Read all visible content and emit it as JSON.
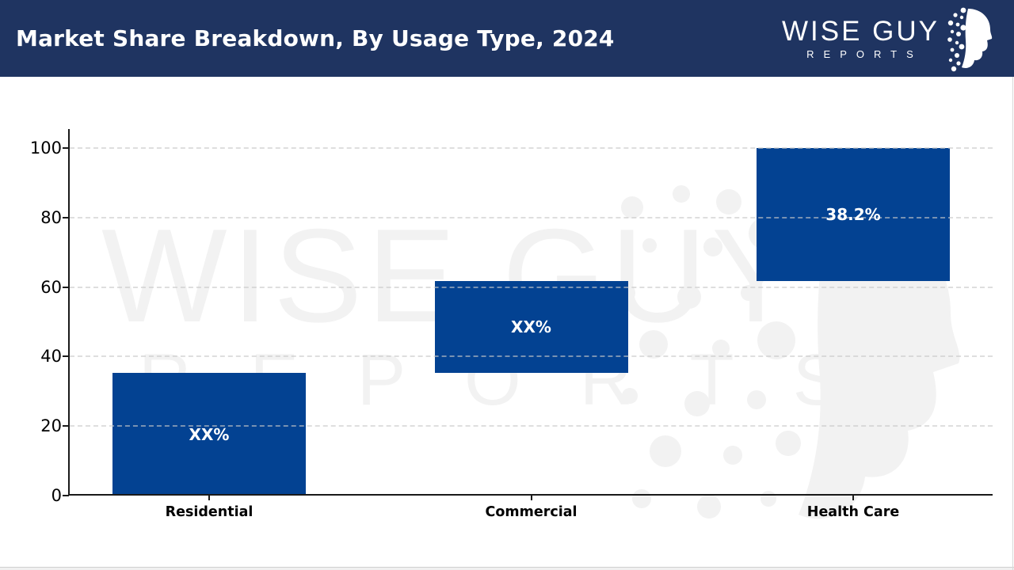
{
  "header": {
    "title": "Market Share Breakdown, By Usage Type, 2024",
    "logo": {
      "line1": "WISE GUY",
      "line2": "REPORTS"
    }
  },
  "watermark": {
    "line1": "WISE GUY",
    "line2": "REPORTS"
  },
  "chart_data": {
    "type": "bar",
    "variant": "floating-range-bars",
    "title": "Market Share Breakdown, By Usage Type, 2024",
    "categories": [
      "Residential",
      "Commercial",
      "Health Care"
    ],
    "bars": [
      {
        "category": "Residential",
        "start": 0,
        "end": 35.2,
        "label": "XX%"
      },
      {
        "category": "Commercial",
        "start": 35.2,
        "end": 61.8,
        "label": "XX%"
      },
      {
        "category": "Health Care",
        "start": 61.8,
        "end": 100,
        "label": "38.2%"
      }
    ],
    "yticks": [
      0,
      20,
      40,
      60,
      80,
      100
    ],
    "ylim": [
      0,
      105.3
    ],
    "xlabel": "",
    "ylabel": "",
    "grid": "horizontal-dashed",
    "legend": "none",
    "colors": {
      "bar": "#034292",
      "bar_label": "#ffffff",
      "header_bg": "#1f3461",
      "grid": "#e0e0e0",
      "axis": "#1a1a1a",
      "watermark": "#f2f2f2"
    }
  }
}
